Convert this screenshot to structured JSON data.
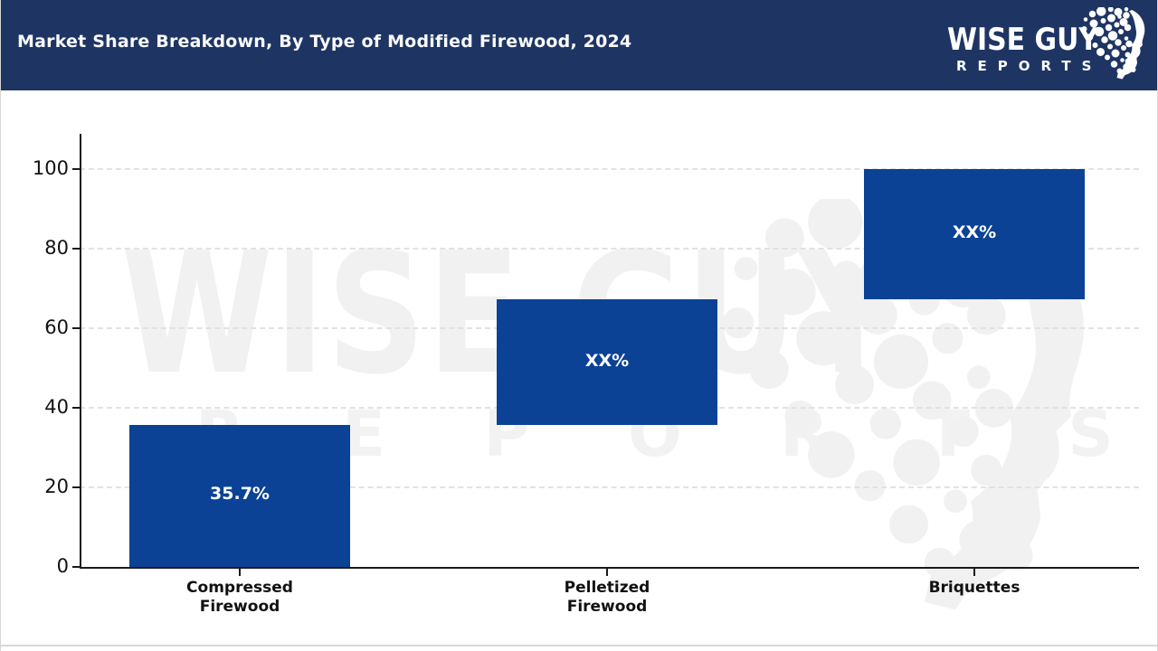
{
  "header": {
    "title": "Market Share Breakdown, By Type of Modified Firewood, 2024",
    "background_color": "#1e3564",
    "logo": {
      "line1": "WISE GUY",
      "line2": "REPORTS"
    }
  },
  "watermark": {
    "line1": "WISE GUY",
    "line2": "R E P O R T S"
  },
  "chart_data": {
    "type": "bar",
    "variant": "waterfall",
    "title": "Market Share Breakdown, By Type of Modified Firewood, 2024",
    "categories": [
      [
        "Compressed",
        "Firewood"
      ],
      [
        "Pelletized",
        "Firewood"
      ],
      [
        "Briquettes"
      ]
    ],
    "series": [
      {
        "name": "Market share (%)",
        "segments": [
          {
            "category": "Compressed Firewood",
            "start": 0,
            "end": 35.7,
            "label": "35.7%"
          },
          {
            "category": "Pelletized Firewood",
            "start": 35.7,
            "end": 67.2,
            "label": "XX%"
          },
          {
            "category": "Briquettes",
            "start": 67.2,
            "end": 100,
            "label": "XX%"
          }
        ]
      }
    ],
    "ylim": [
      0,
      100
    ],
    "yticks": [
      0,
      20,
      40,
      60,
      80,
      100
    ],
    "xlabel": "",
    "ylabel": "",
    "grid": "horizontal-dashed",
    "legend": "none",
    "bar_color": "#0b4295",
    "bar_label_color": "#ffffff",
    "grid_color": "#e2e2e2",
    "axis_color": "#1a1a1a"
  }
}
